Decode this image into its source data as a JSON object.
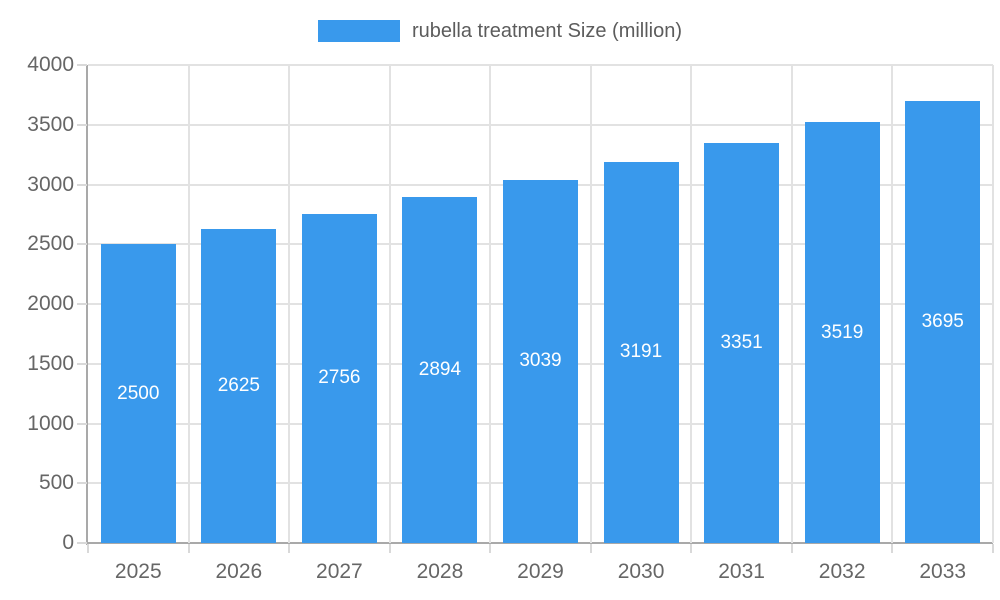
{
  "legend": {
    "label": "rubella treatment Size (million)"
  },
  "chart_data": {
    "type": "bar",
    "title": "rubella treatment Size (million)",
    "categories": [
      "2025",
      "2026",
      "2027",
      "2028",
      "2029",
      "2030",
      "2031",
      "2032",
      "2033"
    ],
    "values": [
      2500,
      2625,
      2756,
      2894,
      3039,
      3191,
      3351,
      3519,
      3695
    ],
    "xlabel": "",
    "ylabel": "",
    "ylim": [
      0,
      4000
    ],
    "ytick_step": 500,
    "ytick_labels": [
      "0",
      "500",
      "1000",
      "1500",
      "2000",
      "2500",
      "3000",
      "3500",
      "4000"
    ],
    "grid": true,
    "legend_position": "top",
    "colors": {
      "bar": "#3999ec",
      "grid": "#e2e2e2",
      "axis_line": "#a9a9a9",
      "tick": "#d9d9d9",
      "axis_text": "#666666",
      "legend_text": "#5c5c5c",
      "value_text": "#ffffff",
      "background": "#ffffff"
    }
  }
}
